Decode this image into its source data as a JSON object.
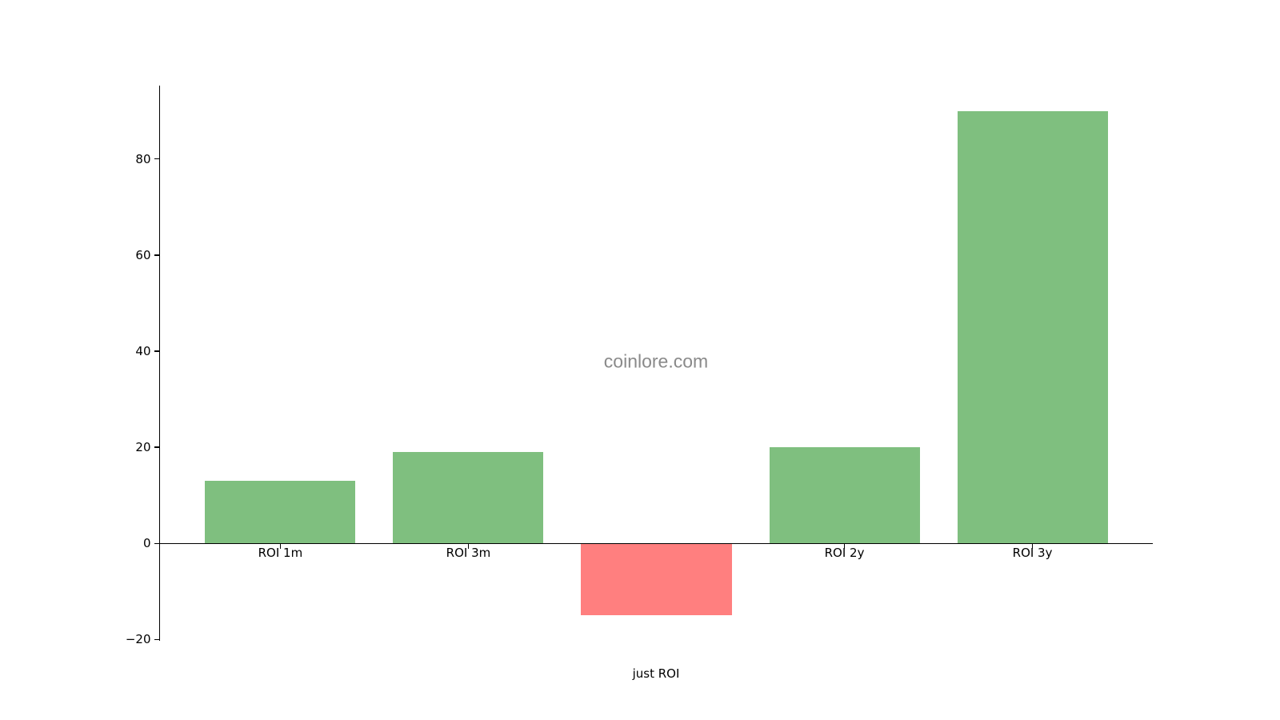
{
  "watermark": "coinlore.com",
  "chart_data": {
    "type": "bar",
    "categories": [
      "ROI 1m",
      "ROI 3m",
      "",
      "ROI 2y",
      "ROI 3y"
    ],
    "values": [
      13,
      19,
      -15,
      20,
      90
    ],
    "title": "",
    "xlabel": "just ROI",
    "ylabel": "",
    "ylim": [
      -20.25,
      95.25
    ],
    "yticks": [
      -20,
      0,
      20,
      40,
      60,
      80
    ],
    "grid": false,
    "legend": "none",
    "positive_color": "#7fbf7f",
    "negative_color": "#ff7f7f",
    "axis_color": "#000000",
    "background_color": "#ffffff"
  }
}
